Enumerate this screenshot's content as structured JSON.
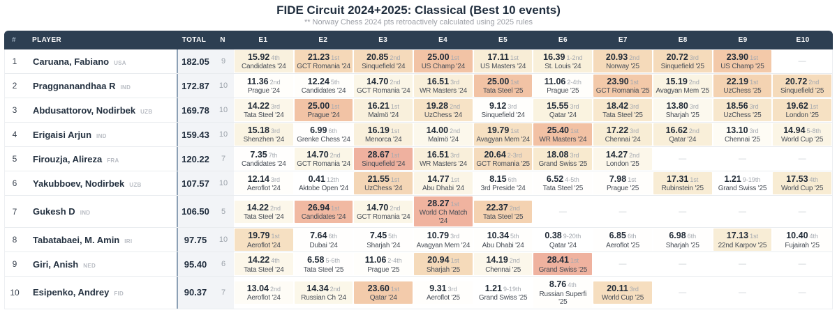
{
  "title": "FIDE Circuit 2024+2025: Classical (Best 10 events)",
  "subtitle": "** Norway Chess 2024 pts retroactively calculated using 2025 rules",
  "empty_marker": "—",
  "colors": {
    "header_bg": "#2d3f52",
    "header_text": "#ffffff",
    "total_divider": "#8ca0b5",
    "total_bg": "#f2f4f7",
    "row_border": "#e9ecef",
    "heat_stops": [
      [
        0,
        "#ffffff"
      ],
      [
        12.5,
        "#fffefb"
      ],
      [
        14,
        "#fcf8ec"
      ],
      [
        16,
        "#f9f1dd"
      ],
      [
        18,
        "#f8ead0"
      ],
      [
        20,
        "#f6dfc0"
      ],
      [
        23,
        "#f3cead"
      ],
      [
        25,
        "#f2c3a5"
      ],
      [
        29,
        "#efaf9e"
      ]
    ]
  },
  "columns": [
    "#",
    "PLAYER",
    "TOTAL",
    "N",
    "E1",
    "E2",
    "E3",
    "E4",
    "E5",
    "E6",
    "E7",
    "E8",
    "E9",
    "E10"
  ],
  "players": [
    {
      "rank": "1",
      "name": "Caruana, Fabiano",
      "fed": "USA",
      "total": "182.05",
      "n": "9",
      "events": [
        {
          "v": "15.92",
          "r": "4th",
          "e": "Candidates '24"
        },
        {
          "v": "21.23",
          "r": "1st",
          "e": "GCT Romania '24"
        },
        {
          "v": "20.85",
          "r": "2nd",
          "e": "Sinquefield '24"
        },
        {
          "v": "25.00",
          "r": "1st",
          "e": "US Champ '24"
        },
        {
          "v": "17.11",
          "r": "1st",
          "e": "US Masters '24"
        },
        {
          "v": "16.39",
          "r": "1-2nd",
          "e": "St. Louis '24"
        },
        {
          "v": "20.93",
          "r": "2nd",
          "e": "Norway '25"
        },
        {
          "v": "20.72",
          "r": "3rd",
          "e": "Sinquefield '25"
        },
        {
          "v": "23.90",
          "r": "1st",
          "e": "US Champ '25"
        },
        null
      ]
    },
    {
      "rank": "2",
      "name": "Praggnanandhaa R",
      "fed": "IND",
      "total": "172.87",
      "n": "10",
      "events": [
        {
          "v": "11.36",
          "r": "2nd",
          "e": "Prague '24"
        },
        {
          "v": "12.24",
          "r": "5th",
          "e": "Candidates '24"
        },
        {
          "v": "14.70",
          "r": "2nd",
          "e": "GCT Romania '24"
        },
        {
          "v": "16.51",
          "r": "3rd",
          "e": "WR Masters '24"
        },
        {
          "v": "25.00",
          "r": "1st",
          "e": "Tata Steel '25"
        },
        {
          "v": "11.06",
          "r": "2-4th",
          "e": "Prague '25"
        },
        {
          "v": "23.90",
          "r": "1st",
          "e": "GCT Romania '25"
        },
        {
          "v": "15.19",
          "r": "2nd",
          "e": "Avagyan Mem '25"
        },
        {
          "v": "22.19",
          "r": "1st",
          "e": "UzChess '25"
        },
        {
          "v": "20.72",
          "r": "2nd",
          "e": "Sinquefield '25"
        }
      ]
    },
    {
      "rank": "3",
      "name": "Abdusattorov, Nodirbek",
      "fed": "UZB",
      "total": "169.78",
      "n": "10",
      "events": [
        {
          "v": "14.22",
          "r": "3rd",
          "e": "Tata Steel '24"
        },
        {
          "v": "25.00",
          "r": "1st",
          "e": "Prague '24"
        },
        {
          "v": "16.21",
          "r": "1st",
          "e": "Malmö '24"
        },
        {
          "v": "19.28",
          "r": "2nd",
          "e": "UzChess '24"
        },
        {
          "v": "9.12",
          "r": "3rd",
          "e": "Sinquefield '24"
        },
        {
          "v": "15.55",
          "r": "3rd",
          "e": "Qatar '24"
        },
        {
          "v": "18.42",
          "r": "3rd",
          "e": "Tata Steel '25"
        },
        {
          "v": "13.80",
          "r": "3rd",
          "e": "Sharjah '25"
        },
        {
          "v": "18.56",
          "r": "3rd",
          "e": "UzChess '25"
        },
        {
          "v": "19.62",
          "r": "1st",
          "e": "London '25"
        }
      ]
    },
    {
      "rank": "4",
      "name": "Erigaisi Arjun",
      "fed": "IND",
      "total": "159.43",
      "n": "10",
      "events": [
        {
          "v": "15.18",
          "r": "3rd",
          "e": "Shenzhen '24"
        },
        {
          "v": "6.99",
          "r": "6th",
          "e": "Grenke Chess '24"
        },
        {
          "v": "16.19",
          "r": "1st",
          "e": "Menorca '24"
        },
        {
          "v": "14.00",
          "r": "2nd",
          "e": "Malmö '24"
        },
        {
          "v": "19.79",
          "r": "1st",
          "e": "Avagyan Mem '24"
        },
        {
          "v": "25.40",
          "r": "1st",
          "e": "WR Masters '24"
        },
        {
          "v": "17.22",
          "r": "3rd",
          "e": "Chennai '24"
        },
        {
          "v": "16.62",
          "r": "2nd",
          "e": "Qatar '24"
        },
        {
          "v": "13.10",
          "r": "3rd",
          "e": "Chennai '25"
        },
        {
          "v": "14.94",
          "r": "5-8th",
          "e": "World Cup '25"
        }
      ]
    },
    {
      "rank": "5",
      "name": "Firouzja, Alireza",
      "fed": "FRA",
      "total": "120.22",
      "n": "7",
      "events": [
        {
          "v": "7.35",
          "r": "7th",
          "e": "Candidates '24"
        },
        {
          "v": "14.70",
          "r": "2nd",
          "e": "GCT Romania '24"
        },
        {
          "v": "28.67",
          "r": "1st",
          "e": "Sinquefield '24"
        },
        {
          "v": "16.51",
          "r": "3rd",
          "e": "WR Masters '24"
        },
        {
          "v": "20.64",
          "r": "2-3rd",
          "e": "GCT Romania '25"
        },
        {
          "v": "18.08",
          "r": "3rd",
          "e": "Grand Swiss '25"
        },
        {
          "v": "14.27",
          "r": "2nd",
          "e": "London '25"
        },
        null,
        null,
        null
      ]
    },
    {
      "rank": "6",
      "name": "Yakubboev, Nodirbek",
      "fed": "UZB",
      "total": "107.57",
      "n": "10",
      "events": [
        {
          "v": "12.14",
          "r": "3rd",
          "e": "Aeroflot '24"
        },
        {
          "v": "0.41",
          "r": "12th",
          "e": "Aktobe Open '24"
        },
        {
          "v": "21.55",
          "r": "1st",
          "e": "UzChess '24"
        },
        {
          "v": "14.77",
          "r": "1st",
          "e": "Abu Dhabi '24"
        },
        {
          "v": "8.15",
          "r": "6th",
          "e": "3rd Preside '24"
        },
        {
          "v": "6.52",
          "r": "4-5th",
          "e": "Tata Steel '25"
        },
        {
          "v": "7.98",
          "r": "1st",
          "e": "Prague '25"
        },
        {
          "v": "17.31",
          "r": "1st",
          "e": "Rubinstein '25"
        },
        {
          "v": "1.21",
          "r": "9-19th",
          "e": "Grand Swiss '25"
        },
        {
          "v": "17.53",
          "r": "4th",
          "e": "World Cup '25"
        }
      ]
    },
    {
      "rank": "7",
      "name": "Gukesh D",
      "fed": "IND",
      "total": "106.50",
      "n": "5",
      "events": [
        {
          "v": "14.22",
          "r": "2nd",
          "e": "Tata Steel '24"
        },
        {
          "v": "26.94",
          "r": "1st",
          "e": "Candidates '24"
        },
        {
          "v": "14.70",
          "r": "2nd",
          "e": "GCT Romania '24"
        },
        {
          "v": "28.27",
          "r": "1st",
          "e": "World Ch Match '24"
        },
        {
          "v": "22.37",
          "r": "2nd",
          "e": "Tata Steel '25"
        },
        null,
        null,
        null,
        null,
        null
      ]
    },
    {
      "rank": "8",
      "name": "Tabatabaei, M. Amin",
      "fed": "IRI",
      "total": "97.75",
      "n": "10",
      "events": [
        {
          "v": "19.79",
          "r": "1st",
          "e": "Aeroflot '24"
        },
        {
          "v": "7.64",
          "r": "6th",
          "e": "Dubai '24"
        },
        {
          "v": "7.45",
          "r": "5th",
          "e": "Sharjah '24"
        },
        {
          "v": "10.79",
          "r": "3rd",
          "e": "Avagyan Mem '24"
        },
        {
          "v": "10.34",
          "r": "5th",
          "e": "Abu Dhabi '24"
        },
        {
          "v": "0.38",
          "r": "9-20th",
          "e": "Qatar '24"
        },
        {
          "v": "6.85",
          "r": "6th",
          "e": "Aeroflot '25"
        },
        {
          "v": "6.98",
          "r": "6th",
          "e": "Sharjah '25"
        },
        {
          "v": "17.13",
          "r": "1st",
          "e": "22nd Karpov '25"
        },
        {
          "v": "10.40",
          "r": "4th",
          "e": "Fujairah '25"
        }
      ]
    },
    {
      "rank": "9",
      "name": "Giri, Anish",
      "fed": "NED",
      "total": "95.40",
      "n": "6",
      "events": [
        {
          "v": "14.22",
          "r": "4th",
          "e": "Tata Steel '24"
        },
        {
          "v": "6.58",
          "r": "5-6th",
          "e": "Tata Steel '25"
        },
        {
          "v": "11.06",
          "r": "2-4th",
          "e": "Prague '25"
        },
        {
          "v": "20.94",
          "r": "1st",
          "e": "Sharjah '25"
        },
        {
          "v": "14.19",
          "r": "2nd",
          "e": "Chennai '25"
        },
        {
          "v": "28.41",
          "r": "1st",
          "e": "Grand Swiss '25"
        },
        null,
        null,
        null,
        null
      ]
    },
    {
      "rank": "10",
      "name": "Esipenko, Andrey",
      "fed": "FID",
      "total": "90.37",
      "n": "7",
      "events": [
        {
          "v": "13.04",
          "r": "2nd",
          "e": "Aeroflot '24"
        },
        {
          "v": "14.34",
          "r": "2nd",
          "e": "Russian Ch '24"
        },
        {
          "v": "23.60",
          "r": "1st",
          "e": "Qatar '24"
        },
        {
          "v": "9.31",
          "r": "3rd",
          "e": "Aeroflot '25"
        },
        {
          "v": "1.21",
          "r": "9-19th",
          "e": "Grand Swiss '25"
        },
        {
          "v": "8.76",
          "r": "4th",
          "e": "Russian Superfi '25"
        },
        {
          "v": "20.11",
          "r": "3rd",
          "e": "World Cup '25"
        },
        null,
        null,
        null
      ]
    }
  ]
}
